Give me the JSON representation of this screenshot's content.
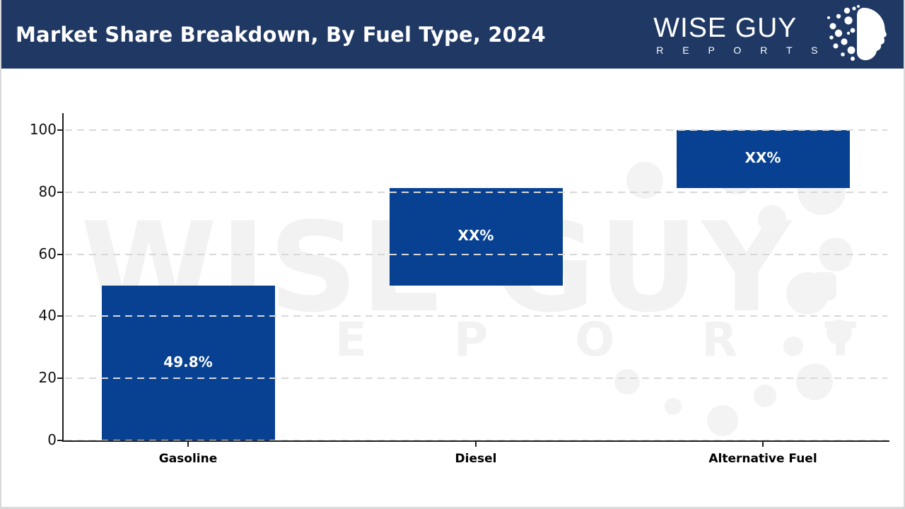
{
  "header": {
    "logo": {
      "name": "WISE GUY",
      "subtitle": "R E P O R T S"
    }
  },
  "watermark": {
    "line1": "WISE GUY",
    "line2": "R E P O R T S"
  },
  "colors": {
    "header_bg": "#1f3864",
    "bar_fill": "#084191",
    "bar_label": "#ffffff",
    "gridline": "#d8d8d8",
    "axis": "#1f1f1f",
    "watermark": "#f2f2f2",
    "frame_border": "#d9d9d9"
  },
  "chart_data": {
    "type": "bar",
    "variant": "waterfall",
    "title": "Market Share Breakdown, By Fuel Type, 2024",
    "categories": [
      "Gasoline",
      "Diesel",
      "Alternative Fuel"
    ],
    "segments": [
      {
        "category": "Gasoline",
        "start": 0,
        "end": 49.8,
        "label": "49.8%"
      },
      {
        "category": "Diesel",
        "start": 49.8,
        "end": 81.3,
        "label": "XX%"
      },
      {
        "category": "Alternative Fuel",
        "start": 81.3,
        "end": 100,
        "label": "XX%"
      }
    ],
    "xlabel": "",
    "ylabel": "",
    "ylim": [
      0,
      105
    ],
    "yticks": [
      0,
      20,
      40,
      60,
      80,
      100
    ],
    "grid": {
      "axis": "y",
      "style": "dashed",
      "drawn_over_bars": true
    },
    "legend": "none",
    "bar_color": "#084191",
    "value_label_color": "#ffffff"
  }
}
